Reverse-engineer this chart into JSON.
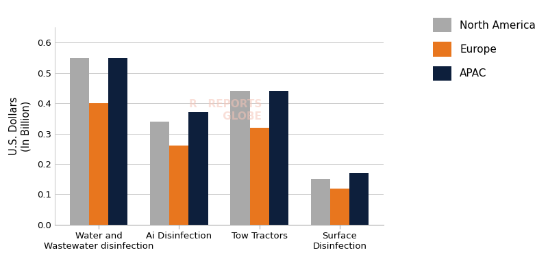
{
  "categories": [
    "Water and\nWastewater disinfection",
    "Ai Disinfection",
    "Tow Tractors",
    "Surface\nDisinfection"
  ],
  "series": {
    "North America": [
      0.55,
      0.34,
      0.44,
      0.15
    ],
    "Europe": [
      0.4,
      0.26,
      0.32,
      0.12
    ],
    "APAC": [
      0.55,
      0.37,
      0.44,
      0.17
    ]
  },
  "colors": {
    "North America": "#a9a9a9",
    "Europe": "#e8761e",
    "APAC": "#0d1f3c"
  },
  "ylabel": "U.S. Dollars\n(In Billion)",
  "ylim": [
    0,
    0.65
  ],
  "yticks": [
    0.0,
    0.1,
    0.2,
    0.3,
    0.4,
    0.5,
    0.6
  ],
  "bar_width": 0.24,
  "legend_labels": [
    "North America",
    "Europe",
    "APAC"
  ],
  "background_color": "#ffffff",
  "legend_fontsize": 11,
  "ylabel_fontsize": 10.5,
  "tick_fontsize": 9.5
}
